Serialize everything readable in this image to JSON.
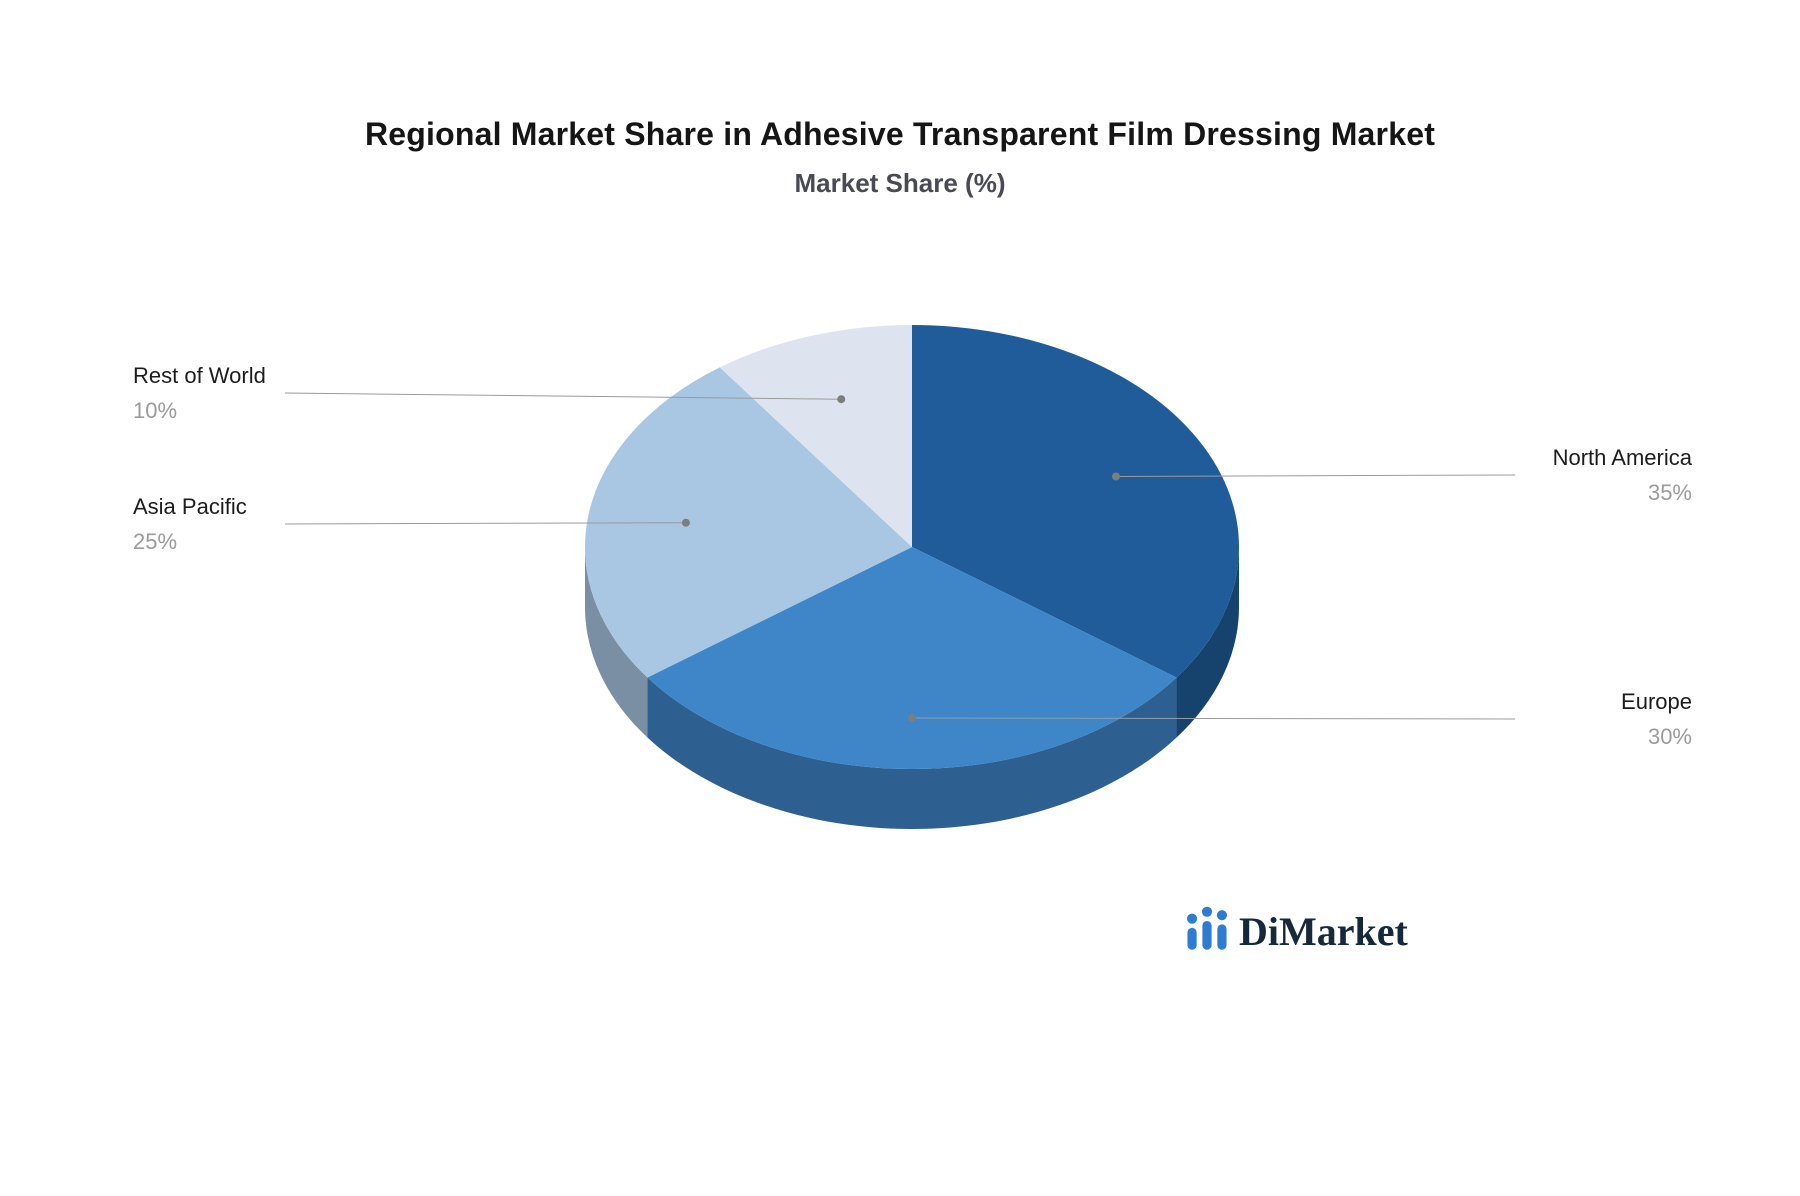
{
  "chart_data": {
    "type": "pie",
    "title": "Regional Market Share in Adhesive Transparent Film Dressing Market",
    "subtitle": "Market Share (%)",
    "categories": [
      "North America",
      "Europe",
      "Asia Pacific",
      "Rest of World"
    ],
    "values": [
      35,
      30,
      25,
      10
    ],
    "display_values": [
      "35%",
      "30%",
      "25%",
      "10%"
    ],
    "colors": [
      "#1F5C99",
      "#3E86C8",
      "#A9C6E2",
      "#DEE4EF"
    ],
    "value_suffix": "%",
    "start_angle_deg": -90,
    "direction": "clockwise",
    "style": "3d",
    "legend_position": "callout-labels",
    "leader_line_color": "#9b9b9b",
    "anchor_dot_color": "#7d7d7d",
    "label_name_color": "#1c1c1c",
    "label_value_color": "#9b9b9b"
  },
  "logo": {
    "text": "DiMarket",
    "icon": "bar-chart-logo-icon",
    "text_color": "#16283C",
    "accent_color": "#2E7BD3"
  }
}
